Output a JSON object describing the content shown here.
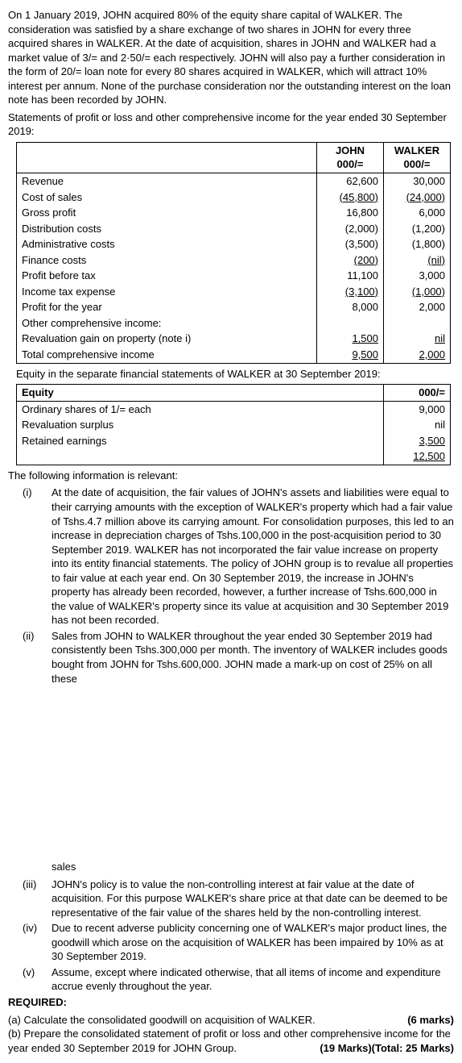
{
  "intro": {
    "p1": "On 1 January 2019, JOHN acquired 80% of the equity share capital of WALKER. The consideration was satisfied by a share exchange of two shares in JOHN for every three acquired shares in WALKER. At the date of acquisition, shares in JOHN and WALKER had a market value of 3/= and 2·50/= each respectively. JOHN will also pay a further consideration in the form of 20/= loan note for every 80 shares acquired in WALKER, which will attract 10% interest per annum. None of the purchase consideration nor the outstanding interest on the loan note has been recorded by JOHN.",
    "p2": "Statements of profit or loss and other comprehensive income for the year ended 30 September 2019:"
  },
  "table1": {
    "h_john": "JOHN 000/=",
    "h_walker": "WALKER 000/=",
    "rows": [
      {
        "label": "Revenue",
        "j": "62,600",
        "w": "30,000"
      },
      {
        "label": "Cost of sales",
        "j": "(45,800)",
        "w": "(24,000)",
        "ju": true,
        "wu": true
      },
      {
        "label": "Gross profit",
        "j": "16,800",
        "w": "6,000"
      },
      {
        "label": "Distribution costs",
        "j": "(2,000)",
        "w": "(1,200)"
      },
      {
        "label": "Administrative costs",
        "j": "(3,500)",
        "w": "(1,800)"
      },
      {
        "label": "Finance costs",
        "j": "(200)",
        "w": "(nil)",
        "ju": true,
        "wu": true
      },
      {
        "label": "Profit before tax",
        "j": "11,100",
        "w": "3,000"
      },
      {
        "label": "Income tax expense",
        "j": "(3,100)",
        "w": "(1,000)",
        "ju": true,
        "wu": true
      },
      {
        "label": "Profit for the year",
        "j": "8,000",
        "w": "2,000"
      },
      {
        "label": "Other comprehensive income:",
        "j": "",
        "w": ""
      },
      {
        "label": "Revaluation gain on property (note i)",
        "j": "1,500",
        "w": "nil",
        "ju": true,
        "wu": true
      },
      {
        "label": "Total comprehensive income",
        "j": "9,500",
        "w": "2,000",
        "ju": true,
        "wu": true
      }
    ]
  },
  "eq_caption": "Equity in the separate financial statements of WALKER at 30 September 2019:",
  "table2": {
    "h_eq": "Equity",
    "h_val": "000/=",
    "rows": [
      {
        "label": "Ordinary shares of 1/= each",
        "v": "9,000"
      },
      {
        "label": "Revaluation surplus",
        "v": "nil"
      },
      {
        "label": "Retained earnings",
        "v": "3,500",
        "u": true
      },
      {
        "label": "",
        "v": "12,500",
        "u": true
      }
    ]
  },
  "notes_intro": "The following information is relevant:",
  "notes": [
    {
      "n": "(i)",
      "t": "At the date of acquisition, the fair values of JOHN's assets and liabilities were equal to their carrying amounts with the exception of WALKER's property which had a fair value of Tshs.4.7 million above its carrying amount. For consolidation purposes, this led to an increase in depreciation charges of Tshs.100,000 in the post-acquisition period to 30 September 2019. WALKER has not incorporated the fair value increase on property into its entity financial statements. The policy of JOHN group is to revalue all properties to fair value at each year end. On 30 September 2019, the increase in JOHN's property has already been recorded, however, a further increase of Tshs.600,000 in the value of WALKER's property since its value at acquisition and 30 September 2019 has not been recorded."
    },
    {
      "n": "(ii)",
      "t": "Sales from JOHN to WALKER throughout the year ended 30 September 2019 had consistently been Tshs.300,000 per month. The inventory of WALKER includes goods bought from JOHN for Tshs.600,000. JOHN made a mark-up on cost of 25% on all these"
    }
  ],
  "cont": {
    "indent_word": "sales"
  },
  "notes2": [
    {
      "n": "(iii)",
      "t": "JOHN's policy is to value the non-controlling interest at fair value at the date of acquisition. For this purpose WALKER's share price at that date can be deemed to be representative of the fair value of the shares held by the non-controlling interest."
    },
    {
      "n": "(iv)",
      "t": "Due to recent adverse publicity concerning one of WALKER's major product lines, the goodwill which arose on the acquisition of WALKER has been impaired by 10% as at 30 September 2019."
    },
    {
      "n": "(v)",
      "t": "Assume, except where indicated otherwise, that all items of income and expenditure accrue evenly throughout the year."
    }
  ],
  "req_label": "REQUIRED:",
  "req_a": "(a)  Calculate the consolidated goodwill on acquisition of WALKER.",
  "req_a_marks": "(6 marks)",
  "req_b": "(b)  Prepare the consolidated statement of profit or loss and other comprehensive income for the year ended 30 September 2019 for JOHN Group.",
  "req_b_marks": "(19 Marks)(Total: 25 Marks)"
}
